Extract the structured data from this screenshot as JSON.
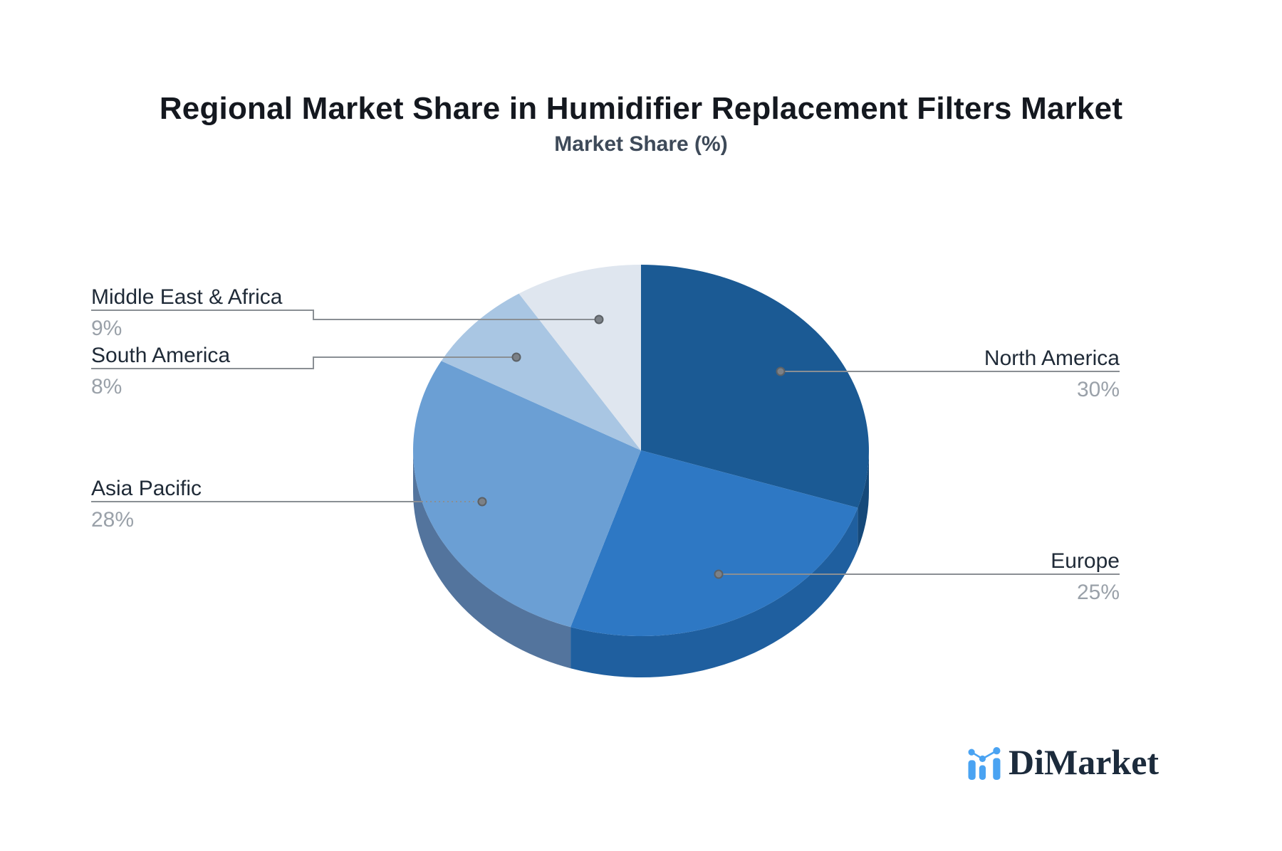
{
  "chart_data": {
    "type": "pie",
    "title": "Regional Market Share in Humidifier Replacement Filters Market",
    "subtitle": "Market Share (%)",
    "unit": "%",
    "style": "3d-pie",
    "start_angle_deg": 0,
    "direction": "clockwise",
    "labels_layout": "callout-leader-lines",
    "legend": "none",
    "leader_line_color": "#8a8f94",
    "leader_dot_color": "#7c8187",
    "label_color": "#1f2a37",
    "value_color": "#9aa1a9",
    "slices": [
      {
        "label": "North America",
        "value": 30,
        "display": "30%",
        "color": "#1b5a94",
        "side_color": "#15497a"
      },
      {
        "label": "Europe",
        "value": 25,
        "display": "25%",
        "color": "#2e78c4",
        "side_color": "#1f5f9f"
      },
      {
        "label": "Asia Pacific",
        "value": 28,
        "display": "28%",
        "color": "#6b9fd4",
        "side_color": "#53749d"
      },
      {
        "label": "South America",
        "value": 8,
        "display": "8%",
        "color": "#a9c6e3",
        "side_color": "#7e9cc0"
      },
      {
        "label": "Middle East & Africa",
        "value": 9,
        "display": "9%",
        "color": "#dfe6ef",
        "side_color": "#afbccd"
      }
    ]
  },
  "branding": {
    "logo_text": "DiMarket",
    "logo_text_color": "#1c2b3c",
    "logo_icon": "bar-chart-sparkline-icon",
    "logo_icon_color": "#4aa3f2"
  }
}
